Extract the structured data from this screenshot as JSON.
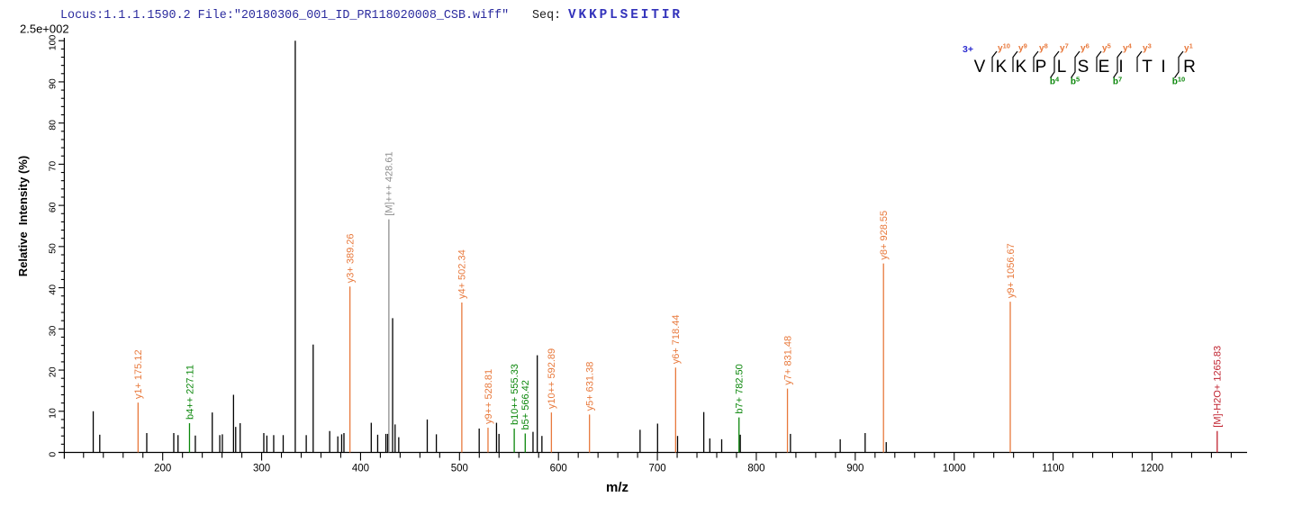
{
  "header": {
    "locus_file": "Locus:1.1.1.1590.2 File:\"20180306_001_ID_PR118020008_CSB.wiff\"",
    "seq_label": "Seq:",
    "seq_value": "VKKPLSEITIR",
    "scale_label": "2.5e+002"
  },
  "colors": {
    "y_ion": "#e8793c",
    "b_ion": "#0b870b",
    "precursor": "#8e8e8e",
    "neutral_loss": "#c02330",
    "peak": "#000000",
    "axis": "#000000",
    "header_text": "#2b2b9e",
    "seq_label_text": "#1c1c1c",
    "seq_value_text": "#3333bb",
    "charge_text": "#2a2acf",
    "tick_label": "#000000"
  },
  "chart_data": {
    "type": "bar",
    "title": "",
    "xlabel": "m/z",
    "ylabel": "Relative  Intensity (%)",
    "xlim": [
      100,
      1296
    ],
    "ylim": [
      0,
      100
    ],
    "x_major_ticks": [
      200,
      300,
      400,
      500,
      600,
      700,
      800,
      900,
      1000,
      1100,
      1200
    ],
    "x_minor_tick_step": 20,
    "y_major_ticks": [
      0,
      10,
      20,
      30,
      40,
      50,
      60,
      70,
      80,
      90,
      100
    ],
    "y_minor_tick_step": 2,
    "grid": "off",
    "peaks": [
      {
        "mz": 129.8,
        "intensity": 10.0,
        "ion": null,
        "label": null
      },
      {
        "mz": 136.4,
        "intensity": 4.3,
        "ion": null,
        "label": null
      },
      {
        "mz": 175.12,
        "intensity": 12.1,
        "ion": "y",
        "label": "y1+ 175.12"
      },
      {
        "mz": 183.9,
        "intensity": 4.7,
        "ion": null,
        "label": null
      },
      {
        "mz": 211.2,
        "intensity": 4.7,
        "ion": null,
        "label": null
      },
      {
        "mz": 215.5,
        "intensity": 4.2,
        "ion": null,
        "label": null
      },
      {
        "mz": 227.11,
        "intensity": 7.1,
        "ion": "b",
        "label": "b4++ 227.11"
      },
      {
        "mz": 233.0,
        "intensity": 4.1,
        "ion": null,
        "label": null
      },
      {
        "mz": 250.1,
        "intensity": 9.7,
        "ion": null,
        "label": null
      },
      {
        "mz": 257.7,
        "intensity": 4.2,
        "ion": null,
        "label": null
      },
      {
        "mz": 260.3,
        "intensity": 4.4,
        "ion": null,
        "label": null
      },
      {
        "mz": 271.6,
        "intensity": 14.0,
        "ion": null,
        "label": null
      },
      {
        "mz": 273.8,
        "intensity": 6.2,
        "ion": null,
        "label": null
      },
      {
        "mz": 278.3,
        "intensity": 7.1,
        "ion": null,
        "label": null
      },
      {
        "mz": 302.2,
        "intensity": 4.7,
        "ion": null,
        "label": null
      },
      {
        "mz": 305.3,
        "intensity": 4.1,
        "ion": null,
        "label": null
      },
      {
        "mz": 312.2,
        "intensity": 4.2,
        "ion": null,
        "label": null
      },
      {
        "mz": 321.8,
        "intensity": 4.2,
        "ion": null,
        "label": null
      },
      {
        "mz": 334.0,
        "intensity": 100.0,
        "ion": null,
        "label": null
      },
      {
        "mz": 345.1,
        "intensity": 4.2,
        "ion": null,
        "label": null
      },
      {
        "mz": 352.1,
        "intensity": 26.2,
        "ion": null,
        "label": null
      },
      {
        "mz": 368.8,
        "intensity": 5.2,
        "ion": null,
        "label": null
      },
      {
        "mz": 377.0,
        "intensity": 3.9,
        "ion": null,
        "label": null
      },
      {
        "mz": 380.9,
        "intensity": 4.4,
        "ion": null,
        "label": null
      },
      {
        "mz": 383.2,
        "intensity": 4.7,
        "ion": null,
        "label": null
      },
      {
        "mz": 389.26,
        "intensity": 40.3,
        "ion": "y",
        "label": "y3+ 389.26"
      },
      {
        "mz": 410.8,
        "intensity": 7.2,
        "ion": null,
        "label": null
      },
      {
        "mz": 417.3,
        "intensity": 4.3,
        "ion": null,
        "label": null
      },
      {
        "mz": 425.6,
        "intensity": 4.5,
        "ion": null,
        "label": null
      },
      {
        "mz": 427.4,
        "intensity": 4.5,
        "ion": null,
        "label": null
      },
      {
        "mz": 428.61,
        "intensity": 56.6,
        "ion": "precursor",
        "label": "[M]+++ 428.61"
      },
      {
        "mz": 432.4,
        "intensity": 32.6,
        "ion": null,
        "label": null
      },
      {
        "mz": 434.9,
        "intensity": 6.8,
        "ion": null,
        "label": null
      },
      {
        "mz": 438.6,
        "intensity": 3.7,
        "ion": null,
        "label": null
      },
      {
        "mz": 467.4,
        "intensity": 8.0,
        "ion": null,
        "label": null
      },
      {
        "mz": 476.6,
        "intensity": 4.4,
        "ion": null,
        "label": null
      },
      {
        "mz": 502.34,
        "intensity": 36.4,
        "ion": "y",
        "label": "y4+ 502.34"
      },
      {
        "mz": 519.9,
        "intensity": 5.8,
        "ion": null,
        "label": null
      },
      {
        "mz": 528.81,
        "intensity": 6.0,
        "ion": "y",
        "label": "y9++ 528.81"
      },
      {
        "mz": 537.4,
        "intensity": 7.2,
        "ion": null,
        "label": null
      },
      {
        "mz": 539.9,
        "intensity": 4.5,
        "ion": null,
        "label": null
      },
      {
        "mz": 555.33,
        "intensity": 5.8,
        "ion": "b",
        "label": "b10++ 555.33"
      },
      {
        "mz": 566.42,
        "intensity": 4.6,
        "ion": "b",
        "label": "b5+ 566.42"
      },
      {
        "mz": 574.3,
        "intensity": 5.0,
        "ion": null,
        "label": null
      },
      {
        "mz": 578.6,
        "intensity": 23.6,
        "ion": null,
        "label": null
      },
      {
        "mz": 583.3,
        "intensity": 4.0,
        "ion": null,
        "label": null
      },
      {
        "mz": 592.89,
        "intensity": 9.7,
        "ion": "y",
        "label": "y10++ 592.89"
      },
      {
        "mz": 631.38,
        "intensity": 9.2,
        "ion": "y",
        "label": "y5+ 631.38"
      },
      {
        "mz": 682.5,
        "intensity": 5.5,
        "ion": null,
        "label": null
      },
      {
        "mz": 700.2,
        "intensity": 7.0,
        "ion": null,
        "label": null
      },
      {
        "mz": 718.44,
        "intensity": 20.6,
        "ion": "y",
        "label": "y6+ 718.44"
      },
      {
        "mz": 720.4,
        "intensity": 4.0,
        "ion": null,
        "label": null
      },
      {
        "mz": 746.9,
        "intensity": 9.8,
        "ion": null,
        "label": null
      },
      {
        "mz": 753.0,
        "intensity": 3.4,
        "ion": null,
        "label": null
      },
      {
        "mz": 765.0,
        "intensity": 3.2,
        "ion": null,
        "label": null
      },
      {
        "mz": 782.5,
        "intensity": 8.5,
        "ion": "b",
        "label": "b7+ 782.50"
      },
      {
        "mz": 783.8,
        "intensity": 4.3,
        "ion": null,
        "label": null
      },
      {
        "mz": 831.48,
        "intensity": 15.5,
        "ion": "y",
        "label": "y7+ 831.48"
      },
      {
        "mz": 834.5,
        "intensity": 4.5,
        "ion": null,
        "label": null
      },
      {
        "mz": 884.8,
        "intensity": 3.2,
        "ion": null,
        "label": null
      },
      {
        "mz": 910.0,
        "intensity": 4.7,
        "ion": null,
        "label": null
      },
      {
        "mz": 928.55,
        "intensity": 45.9,
        "ion": "y",
        "label": "y8+ 928.55"
      },
      {
        "mz": 931.3,
        "intensity": 2.5,
        "ion": null,
        "label": null
      },
      {
        "mz": 1056.67,
        "intensity": 36.6,
        "ion": "y",
        "label": "y9+ 1056.67"
      },
      {
        "mz": 1265.83,
        "intensity": 5.2,
        "ion": "neutral_loss",
        "label": "[M]-H2O+ 1265.83"
      }
    ]
  },
  "ladder": {
    "charge_label": "3+",
    "residues": [
      "V",
      "K",
      "K",
      "P",
      "L",
      "S",
      "E",
      "I",
      "T",
      "I",
      "R"
    ],
    "cleavages": [
      {
        "site": 1,
        "y": "y10",
        "b": null
      },
      {
        "site": 2,
        "y": "y9",
        "b": null
      },
      {
        "site": 3,
        "y": "y8",
        "b": null
      },
      {
        "site": 4,
        "y": "y7",
        "b": "b4"
      },
      {
        "site": 5,
        "y": "y6",
        "b": "b5"
      },
      {
        "site": 6,
        "y": "y5",
        "b": null
      },
      {
        "site": 7,
        "y": "y4",
        "b": "b7"
      },
      {
        "site": 8,
        "y": "y3",
        "b": null
      },
      {
        "site": 10,
        "y": "y1",
        "b": "b10"
      }
    ]
  }
}
